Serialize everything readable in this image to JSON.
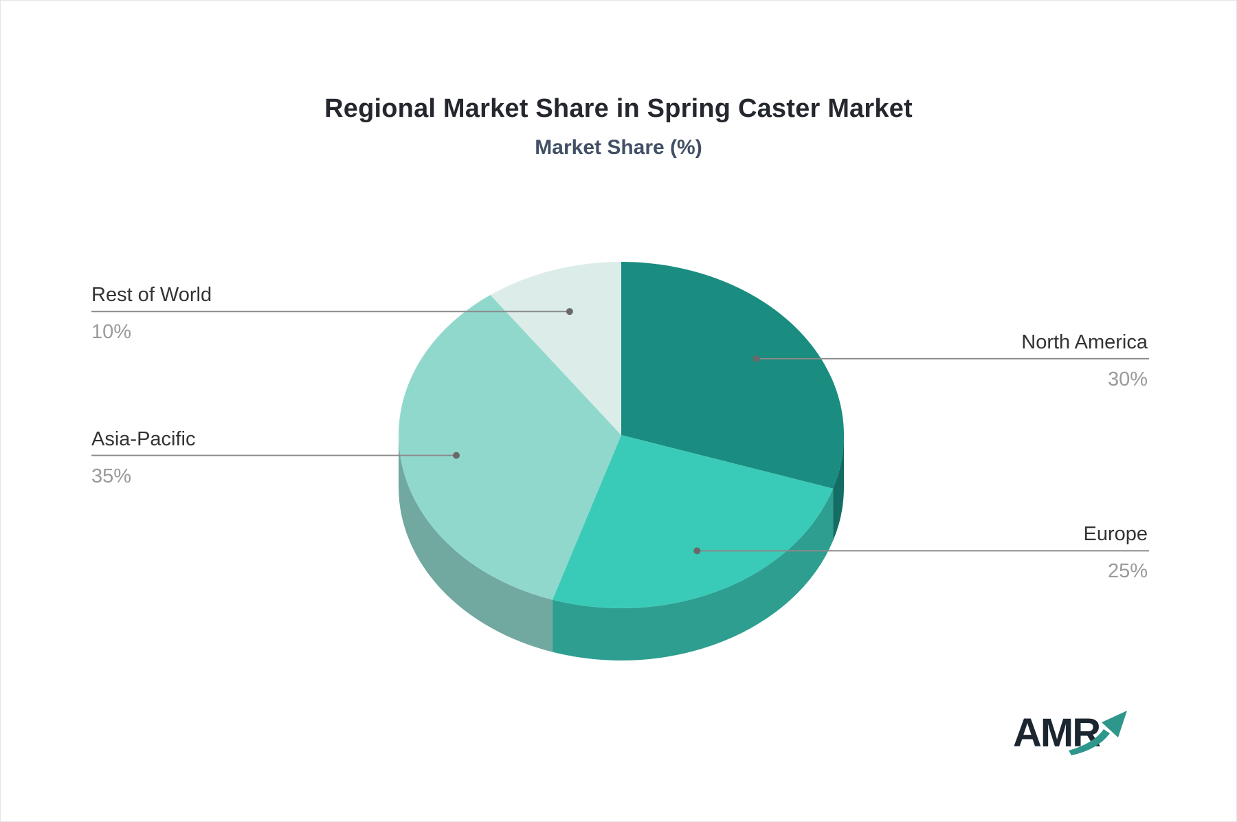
{
  "chart_data": {
    "type": "pie",
    "three_d": true,
    "title": "Regional Market Share in Spring Caster Market",
    "subtitle": "Market Share (%)",
    "start_angle": "top",
    "direction": "clockwise",
    "legend": "none",
    "slices": [
      {
        "name": "North America",
        "value": 30,
        "percent_label": "30%",
        "color": "#1A8C80",
        "label_side": "right"
      },
      {
        "name": "Europe",
        "value": 25,
        "percent_label": "25%",
        "color": "#3ACBB8",
        "label_side": "right"
      },
      {
        "name": "Asia-Pacific",
        "value": 35,
        "percent_label": "35%",
        "color": "#91D8CC",
        "label_side": "left"
      },
      {
        "name": "Rest of World",
        "value": 10,
        "percent_label": "10%",
        "color": "#DCEDE9",
        "label_side": "left"
      }
    ],
    "title_color": "#24282e",
    "subtitle_color": "#415065",
    "label_name_color": "#333333",
    "label_percent_color": "#9a9a9a",
    "connector_color": "#8a8a8a",
    "connector_dot_color": "#696969"
  },
  "logo": {
    "text": "AMR",
    "text_color": "#1b2631",
    "arrow_color": "#2E968B"
  }
}
